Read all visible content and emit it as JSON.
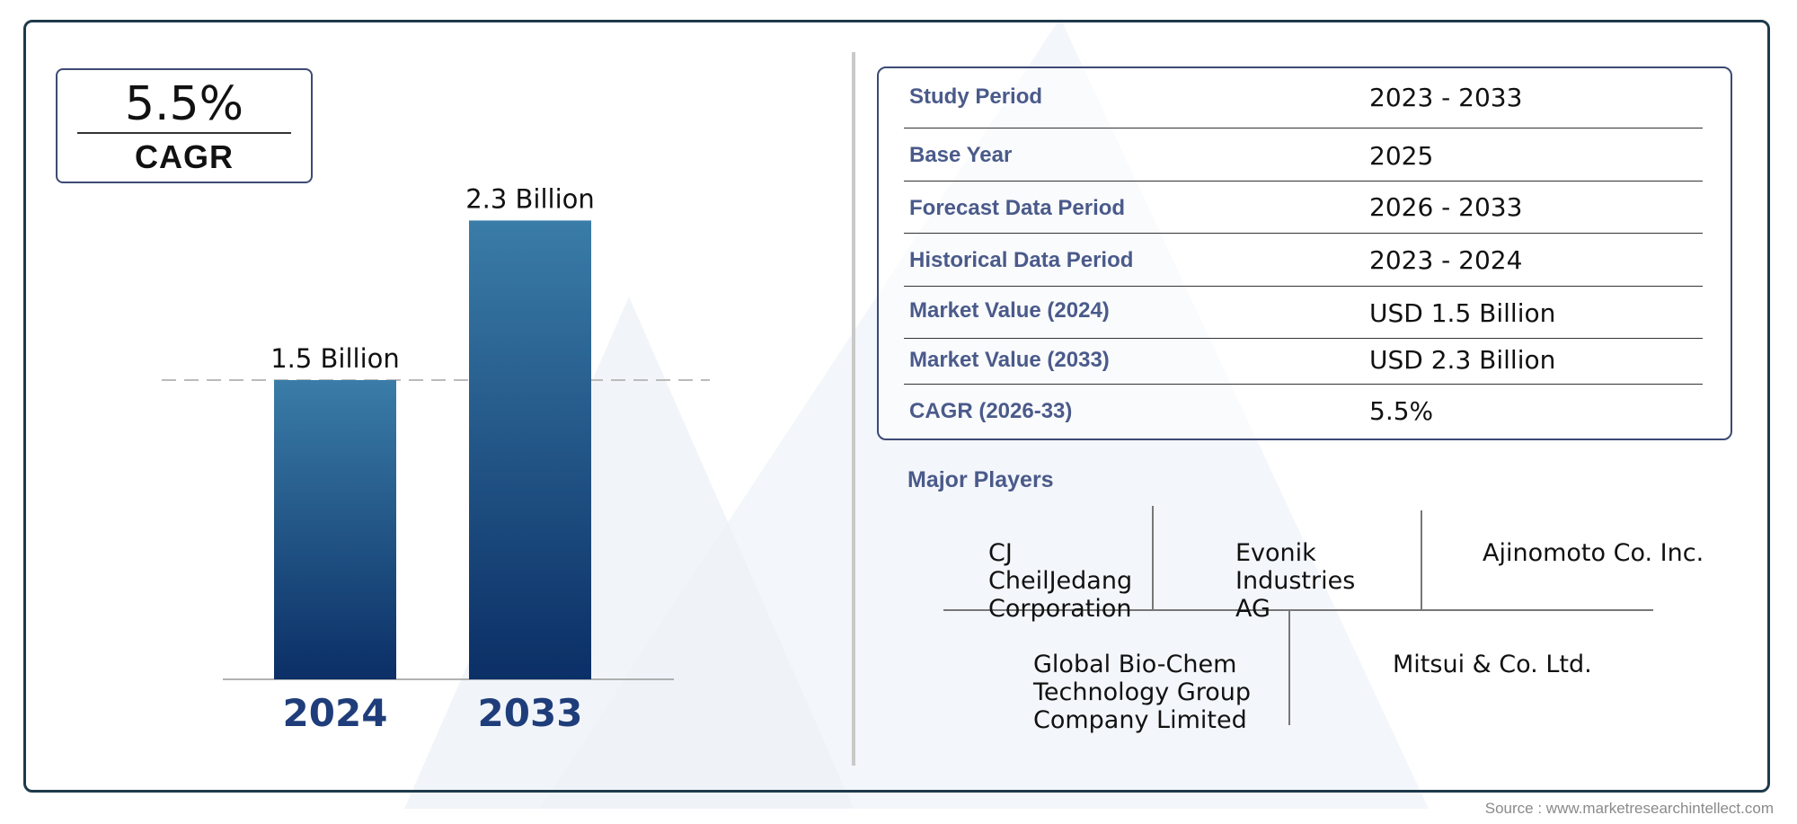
{
  "cagr_box": {
    "value": "5.5%",
    "label": "CAGR"
  },
  "chart_data": {
    "type": "bar",
    "categories": [
      "2024",
      "2033"
    ],
    "values": [
      1.5,
      2.3
    ],
    "data_labels": [
      "1.5 Billion",
      "2.3 Billion"
    ],
    "unit": "Billion",
    "reference_line": 1.5,
    "colors": {
      "bar_top": "#3a7ca8",
      "bar_bottom": "#0b2f66",
      "category_label": "#1f3d7a"
    }
  },
  "info_table": {
    "rows": [
      {
        "label": "Study Period",
        "value": "2023 - 2033"
      },
      {
        "label": "Base Year",
        "value": "2025"
      },
      {
        "label": "Forecast Data Period",
        "value": "2026 - 2033"
      },
      {
        "label": "Historical Data Period",
        "value": "2023 - 2024"
      },
      {
        "label": "Market Value (2024)",
        "value": "USD 1.5 Billion"
      },
      {
        "label": "Market Value (2033)",
        "value": "USD 2.3 Billion"
      },
      {
        "label": "CAGR (2026-33)",
        "value": "5.5%"
      }
    ]
  },
  "major_players": {
    "title": "Major Players",
    "players": [
      {
        "line1": "CJ",
        "line2": "CheilJedang",
        "line3": "Corporation"
      },
      {
        "line1": "Evonik",
        "line2": "Industries",
        "line3": "AG"
      },
      {
        "line1": "Ajinomoto Co. Inc.",
        "line2": "",
        "line3": ""
      },
      {
        "line1": "Global Bio-Chem",
        "line2": "Technology Group",
        "line3": "Company Limited"
      },
      {
        "line1": "Mitsui & Co. Ltd.",
        "line2": "",
        "line3": ""
      }
    ]
  },
  "source": "Source : www.marketresearchintellect.com"
}
